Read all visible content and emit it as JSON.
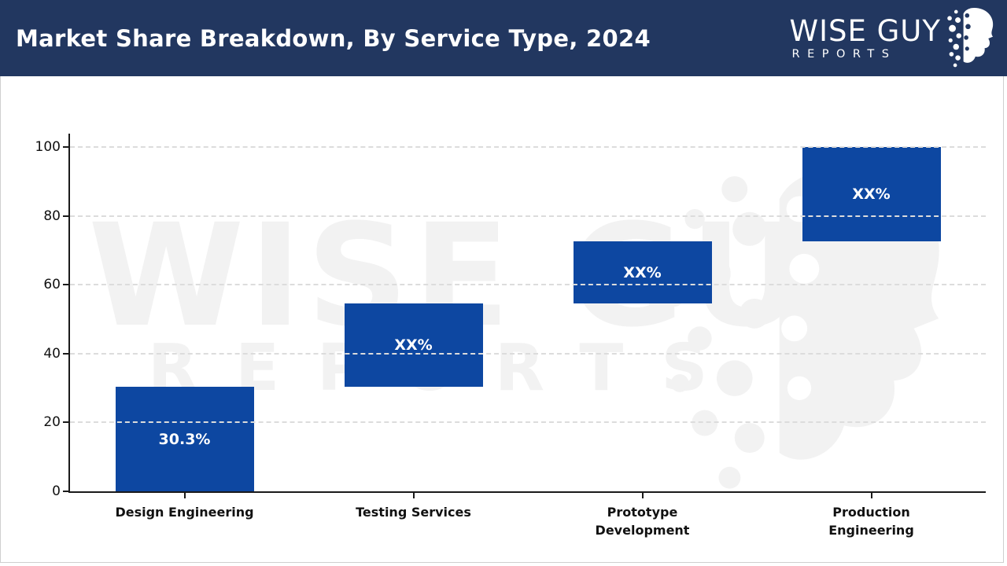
{
  "header": {
    "title": "Market Share Breakdown, By Service Type, 2024",
    "background_color": "#223760",
    "logo": {
      "line1": "WISE GUY",
      "line2": "REPORTS"
    }
  },
  "watermark": {
    "line1": "WISE GUY",
    "line2": "REPORTS"
  },
  "chart_data": {
    "type": "bar",
    "subtype": "waterfall",
    "title": "Market Share Breakdown, By Service Type, 2024",
    "categories": [
      "Design Engineering",
      "Testing Services",
      "Prototype\nDevelopment",
      "Production\nEngineering"
    ],
    "bars": [
      {
        "category": "Design Engineering",
        "start": 0,
        "end": 30.3,
        "label": "30.3%"
      },
      {
        "category": "Testing Services",
        "start": 30.3,
        "end": 54.5,
        "label": "XX%"
      },
      {
        "category": "Prototype Development",
        "start": 54.5,
        "end": 72.5,
        "label": "XX%"
      },
      {
        "category": "Production Engineering",
        "start": 72.5,
        "end": 100,
        "label": "XX%"
      }
    ],
    "xlabel": "",
    "ylabel": "",
    "ylim": [
      0,
      105
    ],
    "yticks": [
      0,
      20,
      40,
      60,
      80,
      100
    ],
    "grid": "horizontal-dashed",
    "legend": "none",
    "bar_color": "#0d47a1",
    "bar_label_color": "#ffffff",
    "axis_color": "#1a1a1a"
  }
}
